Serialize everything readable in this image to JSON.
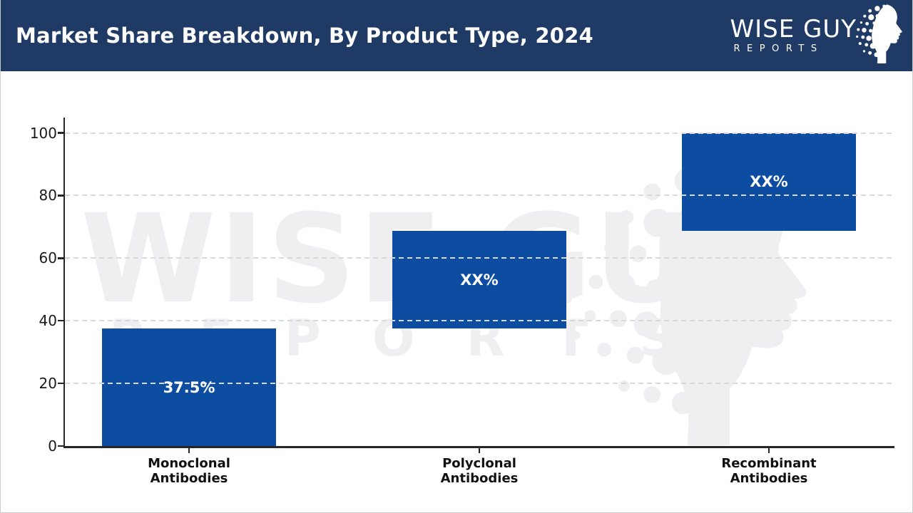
{
  "page": {
    "background": "#ffffff",
    "border_color": "#cccccc"
  },
  "header": {
    "title": "Market Share Breakdown, By Product Type, 2024",
    "background": "#203a66",
    "text_color": "#ffffff",
    "logo": {
      "name": "WISE GUY",
      "subtitle": "REPORTS"
    }
  },
  "watermark": {
    "line1": "WISE GUY",
    "line2": "REPORTS",
    "color": "#efeff1"
  },
  "chart_data": {
    "type": "bar",
    "variant": "stacked-waterfall",
    "title": "Market Share Breakdown, By Product Type, 2024",
    "categories": [
      "Monoclonal Antibodies",
      "Polyclonal Antibodies",
      "Recombinant Antibodies"
    ],
    "category_lines": [
      [
        "Monoclonal",
        "Antibodies"
      ],
      [
        "Polyclonal",
        "Antibodies"
      ],
      [
        "Recombinant",
        "Antibodies"
      ]
    ],
    "bars": [
      {
        "category": "Monoclonal Antibodies",
        "label": "37.5%",
        "start": 0,
        "end": 37.5,
        "value": 37.5
      },
      {
        "category": "Polyclonal Antibodies",
        "label": "XX%",
        "start": 37.5,
        "end": 68.75,
        "value": 31.25
      },
      {
        "category": "Recombinant Antibodies",
        "label": "XX%",
        "start": 68.75,
        "end": 100,
        "value": 31.25
      }
    ],
    "xlabel": "",
    "ylabel": "",
    "ylim": [
      0,
      100
    ],
    "yticks": [
      "0",
      "20",
      "40",
      "60",
      "80",
      "100"
    ],
    "grid": "horizontal-dashed",
    "legend": "none",
    "bar_color": "#0c4da2",
    "bar_label_color": "#ffffff",
    "gridline_color": "#d9d9d9",
    "axis_color": "#262626",
    "tick_label_color": "#1a1a1a"
  }
}
